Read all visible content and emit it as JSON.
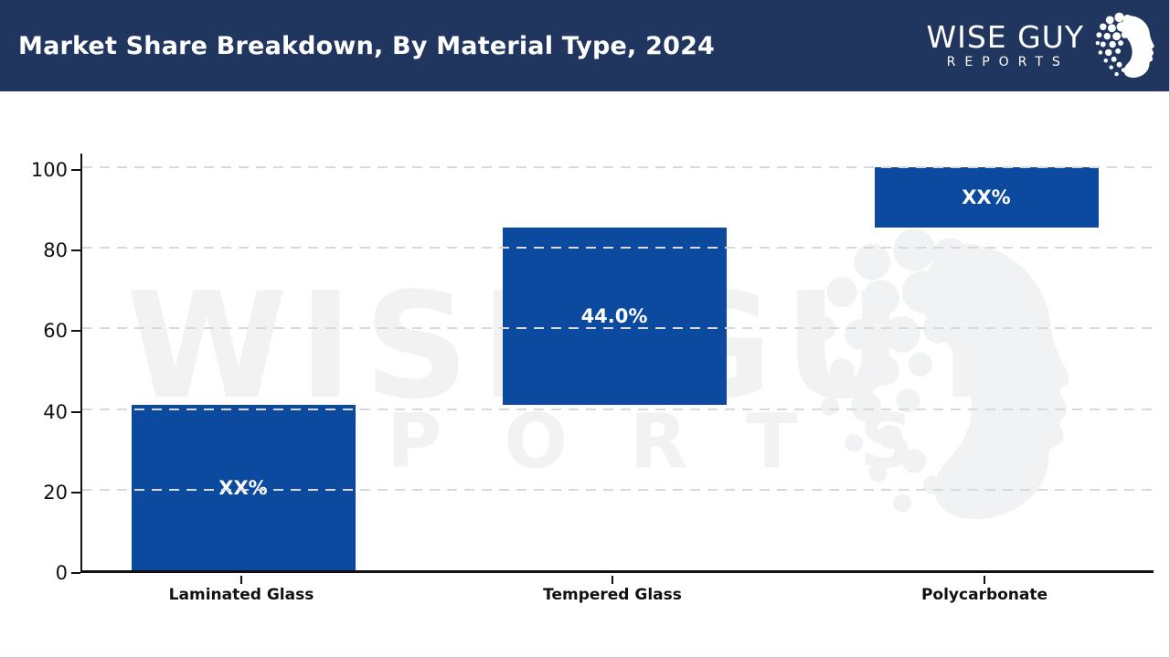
{
  "header": {
    "title": "Market Share Breakdown, By Material Type, 2024",
    "background_color": "#21365f"
  },
  "logo": {
    "line1": "WISE GUY",
    "line2": "REPORTS"
  },
  "watermark": {
    "line1": "WISE GUY",
    "line2": "REPORTS"
  },
  "chart_data": {
    "type": "bar",
    "subtype": "waterfall",
    "title": "Market Share Breakdown, By Material Type, 2024",
    "categories": [
      "Laminated Glass",
      "Tempered Glass",
      "Polycarbonate"
    ],
    "segments": [
      {
        "category": "Laminated Glass",
        "start": 0,
        "end": 41,
        "label": "XX%"
      },
      {
        "category": "Tempered Glass",
        "start": 41,
        "end": 85,
        "label": "44.0%"
      },
      {
        "category": "Polycarbonate",
        "start": 85,
        "end": 100,
        "label": "XX%"
      }
    ],
    "ylim": [
      0,
      104
    ],
    "yticks": [
      0,
      20,
      40,
      60,
      80,
      100
    ],
    "xlabel": "",
    "ylabel": "",
    "grid": "horizontal dashed lines drawn above bars",
    "grid_color": "#d9d9d9",
    "bar_color": "#0b4a9e",
    "label_color": "#ffffff",
    "axis_color": "#111111",
    "legend_position": "none"
  }
}
